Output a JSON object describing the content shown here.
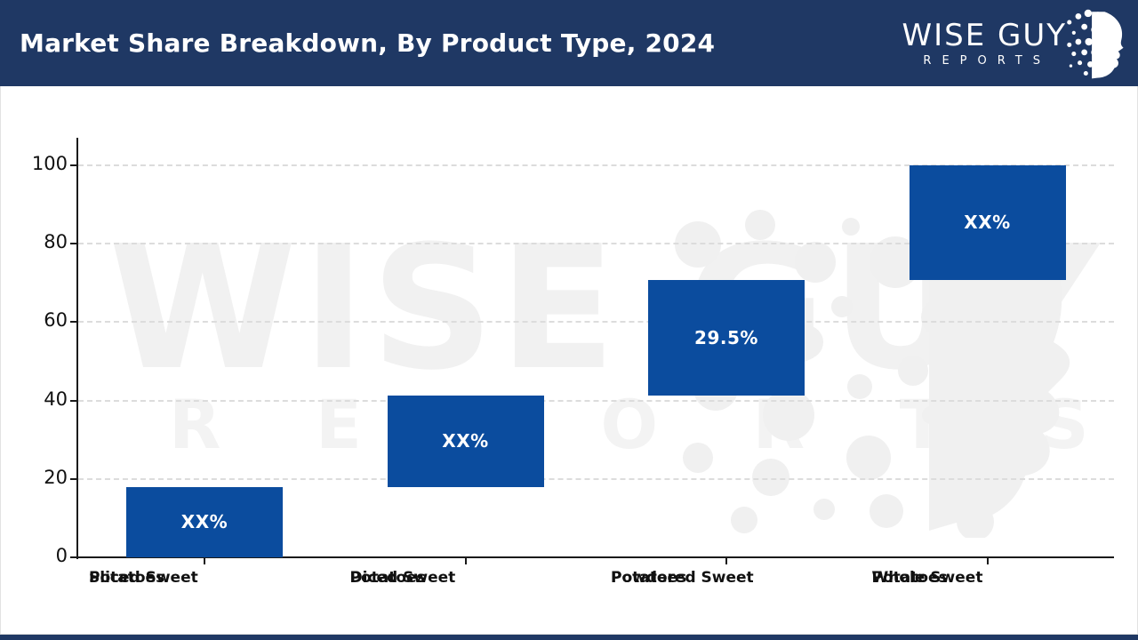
{
  "header": {
    "title": "Market Share Breakdown, By Product Type, 2024",
    "logo": {
      "line1": "WISE GUY",
      "line2": "REPORTS"
    }
  },
  "watermark": {
    "line1": "WISE GUY",
    "line2": "R E P O R T S"
  },
  "chart_data": {
    "type": "bar",
    "subtype": "waterfall",
    "title": "Market Share Breakdown, By Product Type, 2024",
    "xlabel": "",
    "ylabel": "",
    "categories": [
      [
        "Sliced Sweet",
        "Potatoes"
      ],
      [
        "Diced Sweet",
        "Potatoes"
      ],
      [
        "Powdered Sweet",
        "Potatoes"
      ],
      [
        "Whole Sweet",
        "Potatoes"
      ]
    ],
    "bars": [
      {
        "category": "Sliced Sweet Potatoes",
        "label": "XX%",
        "start": 0,
        "end": 18
      },
      {
        "category": "Diced Sweet Potatoes",
        "label": "XX%",
        "start": 18,
        "end": 41.3
      },
      {
        "category": "Powdered Sweet Potatoes",
        "label": "29.5%",
        "start": 41.3,
        "end": 70.8
      },
      {
        "category": "Whole Sweet Potatoes",
        "label": "XX%",
        "start": 70.8,
        "end": 100
      }
    ],
    "yticks": [
      0,
      20,
      40,
      60,
      80,
      100
    ],
    "ylim": [
      0,
      107
    ],
    "grid": "horizontal-dashed",
    "legend": "none",
    "bar_color": "#0B4C9E",
    "header_color": "#1F3864",
    "gridline_color": "#dcdcdc"
  }
}
